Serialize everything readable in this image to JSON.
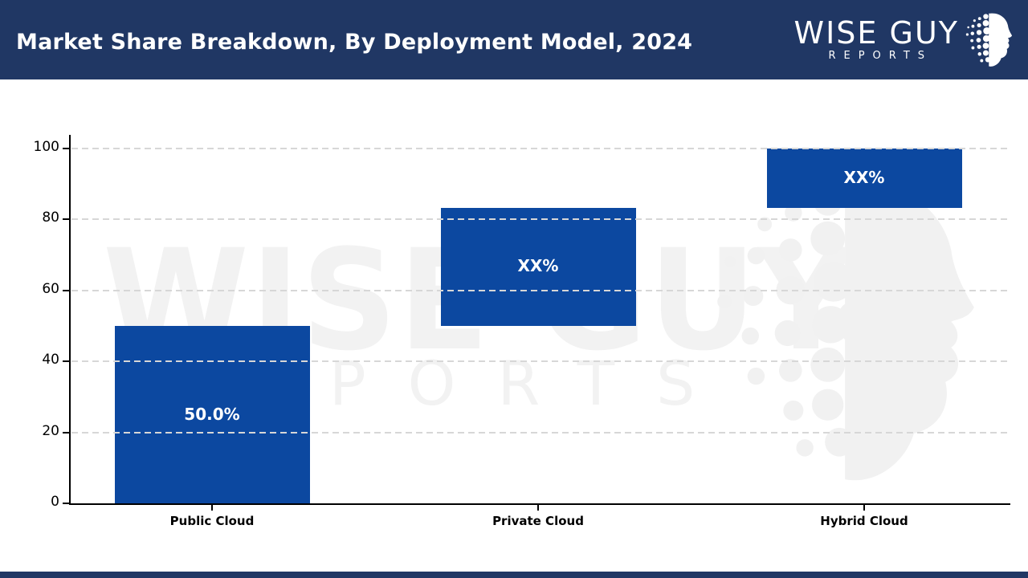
{
  "header": {
    "title": "Market Share Breakdown, By Deployment Model, 2024",
    "bg_color": "#203764",
    "brand": {
      "line1": "WISE GUY",
      "line2": "REPORTS"
    }
  },
  "watermark": {
    "line1": "WISE GUY",
    "line2": "REPORTS"
  },
  "footer": {
    "bg_color": "#203764"
  },
  "chart_data": {
    "type": "bar",
    "subtype": "stacked-waterfall",
    "title": "Market Share Breakdown, By Deployment Model, 2024",
    "categories": [
      "Public Cloud",
      "Private Cloud",
      "Hybrid Cloud"
    ],
    "segments": [
      {
        "category": "Public Cloud",
        "start": 0,
        "end": 50.0,
        "label": "50.0%"
      },
      {
        "category": "Private Cloud",
        "start": 50.0,
        "end": 83.3,
        "label": "XX%"
      },
      {
        "category": "Hybrid Cloud",
        "start": 83.3,
        "end": 100.0,
        "label": "XX%"
      }
    ],
    "ylim": [
      0,
      100
    ],
    "yticks": [
      0,
      20,
      40,
      60,
      80,
      100
    ],
    "xlabel": "",
    "ylabel": "",
    "bar_color": "#0c48a0",
    "grid": {
      "axis": "y",
      "style": "dashed",
      "color": "#d7d7d7",
      "above_bars": true
    },
    "legend": "none"
  }
}
